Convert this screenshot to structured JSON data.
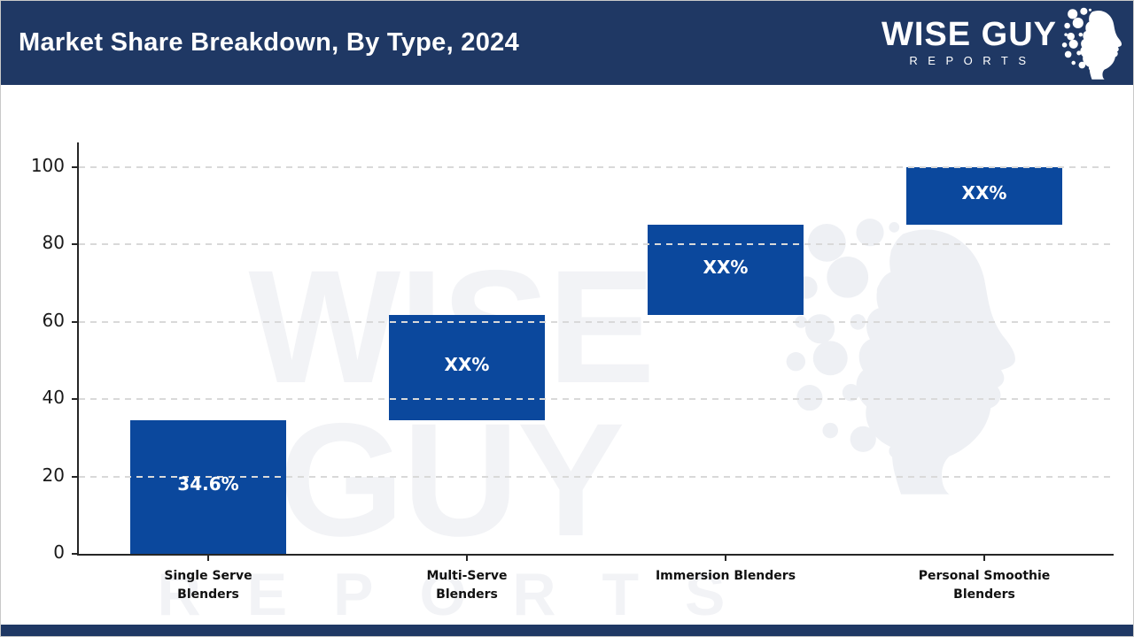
{
  "header": {
    "title": "Market Share Breakdown, By Type, 2024",
    "bg_color": "#1f3864",
    "logo": {
      "line1": "WISE GUY",
      "line2": "REPORTS",
      "head_icon": "dotted-head-profile"
    }
  },
  "watermark": {
    "line1": "WISE GUY",
    "line2": "REPORTS",
    "head_icon": "dotted-head-profile"
  },
  "chart_data": {
    "type": "bar",
    "subtype": "floating-segment-waterfall",
    "title": "Market Share Breakdown, By Type, 2024",
    "categories": [
      "Single Serve\nBlenders",
      "Multi-Serve\nBlenders",
      "Immersion Blenders",
      "Personal Smoothie\nBlenders"
    ],
    "segments": [
      {
        "category": "Single Serve\nBlenders",
        "start": 0,
        "end": 34.6,
        "label": "34.6%"
      },
      {
        "category": "Multi-Serve\nBlenders",
        "start": 34.6,
        "end": 61.7,
        "label": "XX%"
      },
      {
        "category": "Immersion Blenders",
        "start": 61.7,
        "end": 85.0,
        "label": "XX%"
      },
      {
        "category": "Personal Smoothie\nBlenders",
        "start": 85.0,
        "end": 100,
        "label": "XX%"
      }
    ],
    "ylim": [
      0,
      100
    ],
    "yticks": [
      0,
      20,
      40,
      60,
      80,
      100
    ],
    "xlabel": "",
    "ylabel": "",
    "grid": "horizontal-dashed",
    "legend": "none",
    "bar_color": "#0b489d",
    "value_label_color": "#ffffff",
    "grid_color": "#d9d9d9",
    "axis_color": "#262626"
  },
  "footer": {
    "bg_color": "#1f3864"
  }
}
